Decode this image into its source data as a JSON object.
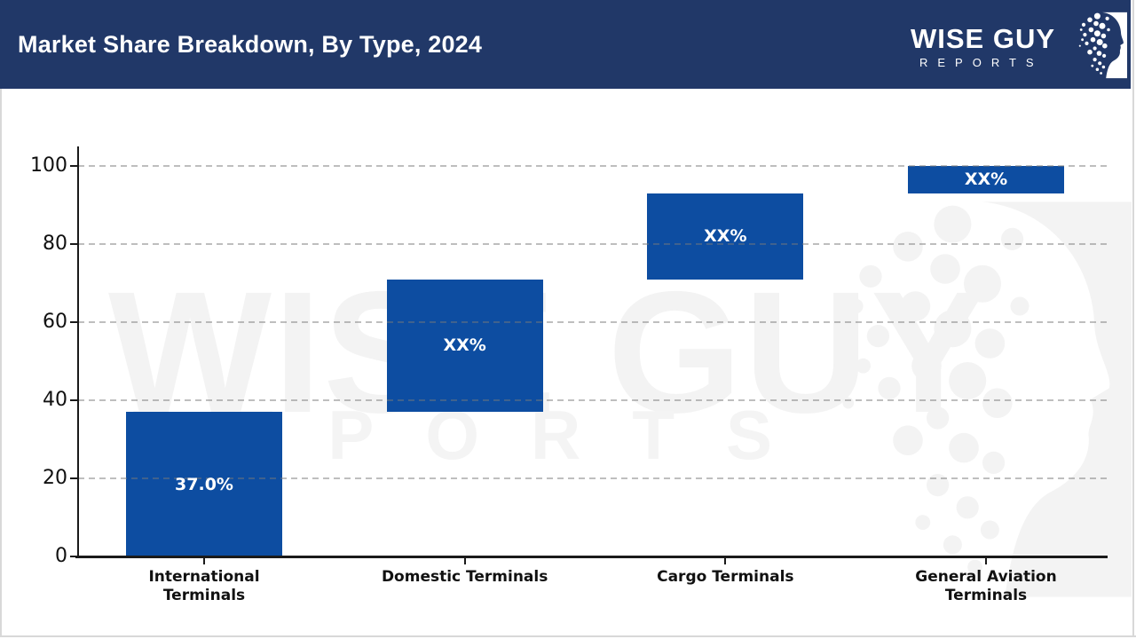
{
  "header": {
    "title": "Market Share Breakdown, By Type, 2024",
    "bg_color": "#213868",
    "logo": {
      "name": "WISE GUY",
      "sub": "REPORTS"
    }
  },
  "watermark": {
    "name": "WISE GUY",
    "sub": "REPORTS"
  },
  "chart_data": {
    "type": "bar",
    "variant": "waterfall",
    "title": "Market Share Breakdown, By Type, 2024",
    "categories": [
      "International Terminals",
      "Domestic Terminals",
      "Cargo Terminals",
      "General Aviation Terminals"
    ],
    "category_lines": [
      [
        "International",
        "Terminals"
      ],
      [
        "Domestic Terminals"
      ],
      [
        "Cargo Terminals"
      ],
      [
        "General Aviation",
        "Terminals"
      ]
    ],
    "bars": [
      {
        "category": "International Terminals",
        "start": 0,
        "end": 37,
        "value": 37.0,
        "label": "37.0%"
      },
      {
        "category": "Domestic Terminals",
        "start": 37,
        "end": 71,
        "value": 34.0,
        "label": "XX%"
      },
      {
        "category": "Cargo Terminals",
        "start": 71,
        "end": 93,
        "value": 22.0,
        "label": "XX%"
      },
      {
        "category": "General Aviation Terminals",
        "start": 93,
        "end": 100,
        "value": 7.0,
        "label": "XX%"
      }
    ],
    "yticks": [
      0,
      20,
      40,
      60,
      80,
      100
    ],
    "ylim": [
      0,
      105
    ],
    "xlabel": "",
    "ylabel": "",
    "legend": null,
    "grid": {
      "axis": "y",
      "style": "dashed",
      "over_bars": true,
      "color": "#787878",
      "opacity": 0.48
    },
    "bar_color": "#0d4da1",
    "bar_label_color": "#ffffff",
    "axis_color": "#1a1a1a",
    "tick_label_color": "#111111",
    "background_color": "#ffffff"
  }
}
